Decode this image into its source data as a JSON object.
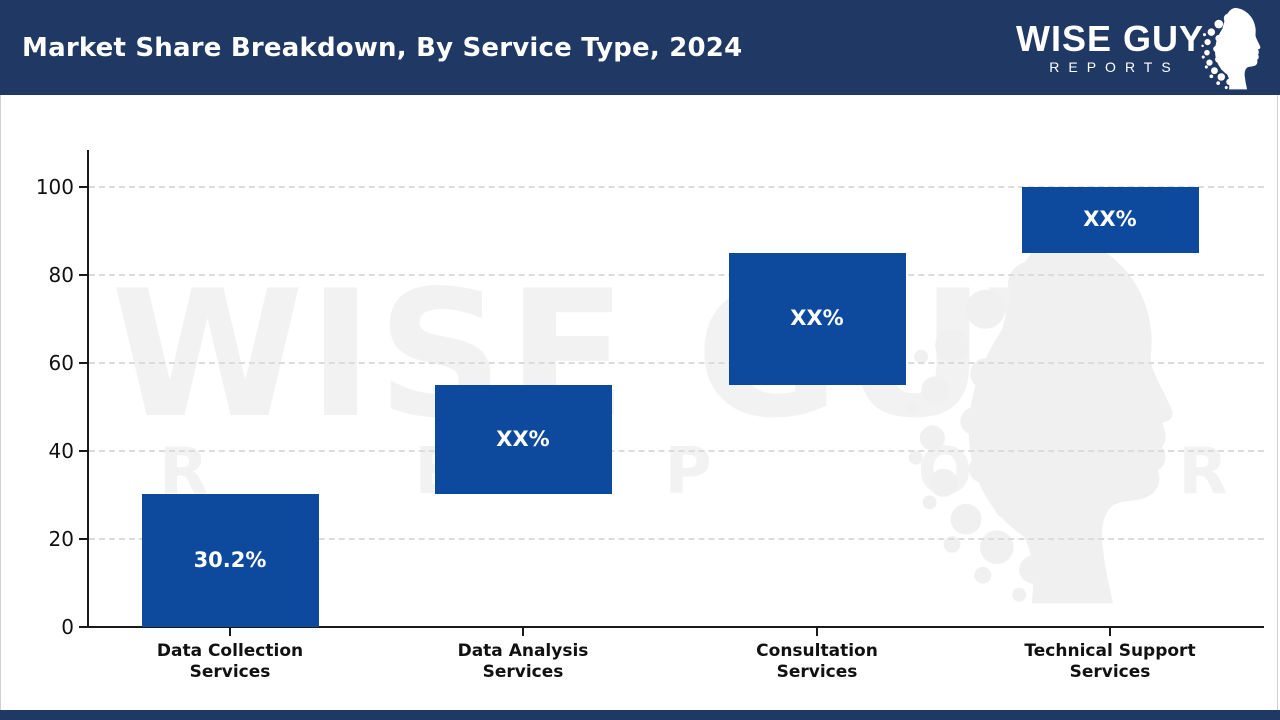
{
  "header": {
    "title": "Market Share Breakdown, By Service Type, 2024",
    "bg_color": "#203864",
    "logo": {
      "brand_line1": "WISE GUY",
      "brand_line2": "REPORTS"
    }
  },
  "watermark": {
    "brand_line1": "WISE GUY",
    "brand_line2": "R E P O R T S"
  },
  "footer": {
    "bg_color": "#203864"
  },
  "chart_data": {
    "type": "bar",
    "variant": "waterfall",
    "title": "Market Share Breakdown, By Service Type, 2024",
    "xlabel": "",
    "ylabel": "",
    "ylim": [
      0,
      105
    ],
    "yticks": [
      0,
      20,
      40,
      60,
      80,
      100
    ],
    "grid": true,
    "legend_position": "none",
    "bar_color": "#0d4a9e",
    "bar_label_color": "#ffffff",
    "categories": [
      "Data Collection Services",
      "Data Analysis Services",
      "Consultation Services",
      "Technical Support Services"
    ],
    "category_lines": [
      [
        "Data Collection",
        "Services"
      ],
      [
        "Data Analysis",
        "Services"
      ],
      [
        "Consultation",
        "Services"
      ],
      [
        "Technical Support",
        "Services"
      ]
    ],
    "segments": [
      {
        "category": "Data Collection Services",
        "label": "30.2%",
        "start": 0,
        "end": 30.2
      },
      {
        "category": "Data Analysis Services",
        "label": "XX%",
        "start": 30.2,
        "end": 55
      },
      {
        "category": "Consultation Services",
        "label": "XX%",
        "start": 55,
        "end": 85
      },
      {
        "category": "Technical Support Services",
        "label": "XX%",
        "start": 85,
        "end": 100
      }
    ]
  }
}
